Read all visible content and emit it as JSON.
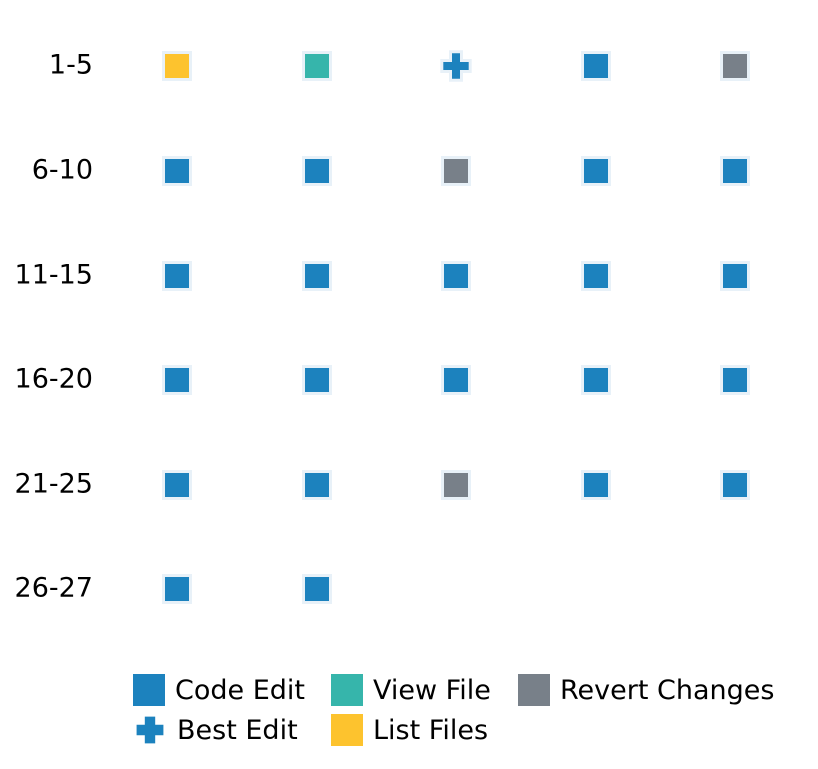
{
  "figure": {
    "background_color": "#ffffff",
    "text_color": "#000000",
    "marker_edge_color": "#e8f1f8"
  },
  "chart_data": {
    "type": "scatter",
    "subtype": "categorical-marker-grid",
    "title": "",
    "xlabel": "",
    "ylabel": "",
    "grid": false,
    "categories": [
      "1-5",
      "6-10",
      "11-15",
      "16-20",
      "21-25",
      "26-27"
    ],
    "columns": [
      1,
      2,
      3,
      4,
      5
    ],
    "rows": [
      {
        "label": "1-5",
        "markers": [
          "list_files",
          "view_file",
          "best_edit",
          "code_edit",
          "revert_changes"
        ]
      },
      {
        "label": "6-10",
        "markers": [
          "code_edit",
          "code_edit",
          "revert_changes",
          "code_edit",
          "code_edit"
        ]
      },
      {
        "label": "11-15",
        "markers": [
          "code_edit",
          "code_edit",
          "code_edit",
          "code_edit",
          "code_edit"
        ]
      },
      {
        "label": "16-20",
        "markers": [
          "code_edit",
          "code_edit",
          "code_edit",
          "code_edit",
          "code_edit"
        ]
      },
      {
        "label": "21-25",
        "markers": [
          "code_edit",
          "code_edit",
          "revert_changes",
          "code_edit",
          "code_edit"
        ]
      },
      {
        "label": "26-27",
        "markers": [
          "code_edit",
          "code_edit",
          null,
          null,
          null
        ]
      }
    ],
    "marker_types": {
      "code_edit": {
        "label": "Code Edit",
        "shape": "square",
        "color": "#1c82be"
      },
      "view_file": {
        "label": "View File",
        "shape": "square",
        "color": "#36b5ab"
      },
      "revert_changes": {
        "label": "Revert Changes",
        "shape": "square",
        "color": "#788089"
      },
      "best_edit": {
        "label": "Best Edit",
        "shape": "plus",
        "color": "#1c82be"
      },
      "list_files": {
        "label": "List Files",
        "shape": "square",
        "color": "#fdc32e"
      }
    },
    "legend": {
      "position": "bottom",
      "rows": [
        [
          "code_edit",
          "view_file",
          "revert_changes"
        ],
        [
          "best_edit",
          "list_files"
        ]
      ]
    }
  }
}
